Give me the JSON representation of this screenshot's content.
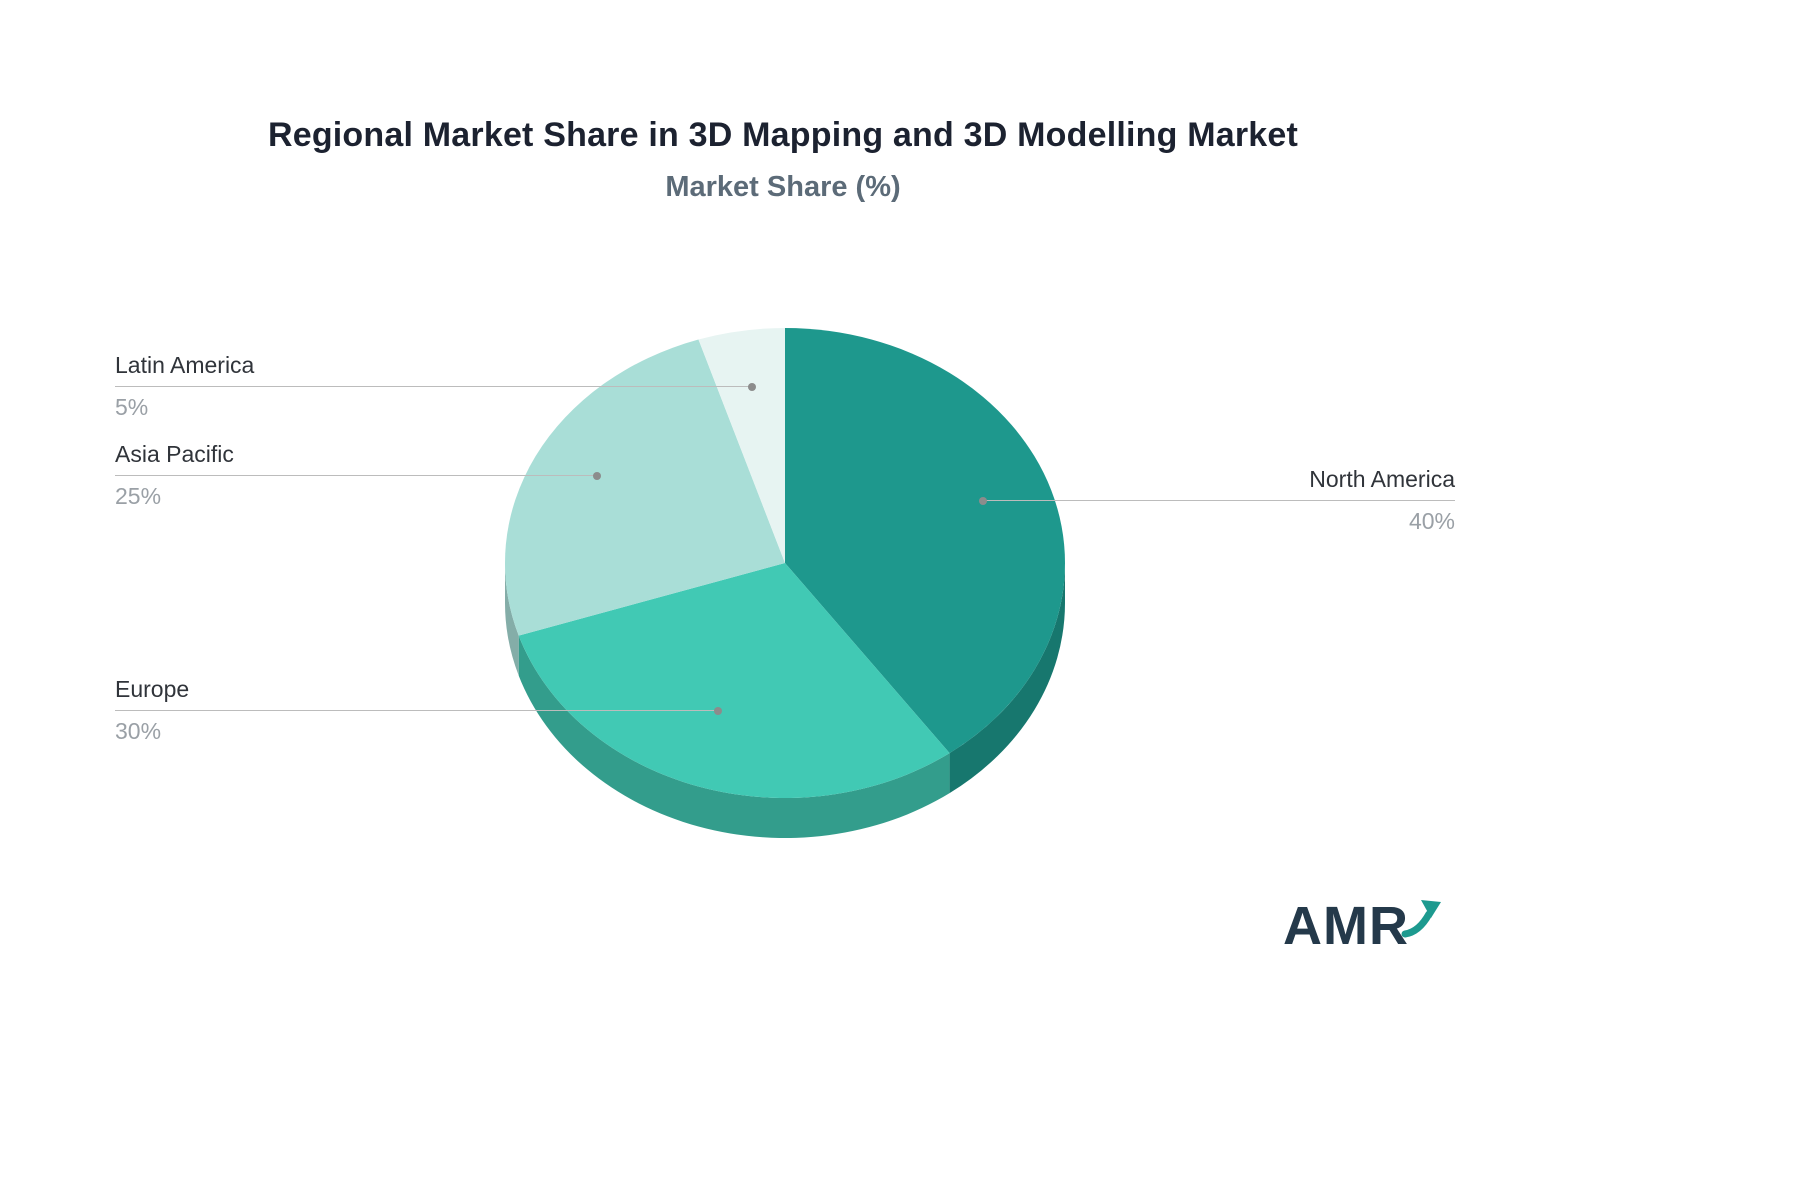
{
  "page": {
    "background": "#ffffff"
  },
  "chart_data": {
    "type": "pie",
    "title": "Regional Market Share in 3D Mapping and 3D Modelling Market",
    "subtitle": "Market Share (%)",
    "unit": "%",
    "effect": "3d",
    "direction": "clockwise",
    "start_angle_deg": 0,
    "legend_position": "callout-labels",
    "slices": [
      {
        "label": "North America",
        "value": 40,
        "display_value": "40%",
        "color": "#1e988d"
      },
      {
        "label": "Europe",
        "value": 30,
        "display_value": "30%",
        "color": "#41c9b4"
      },
      {
        "label": "Asia Pacific",
        "value": 25,
        "display_value": "25%",
        "color": "#a9ded7"
      },
      {
        "label": "Latin America",
        "value": 5,
        "display_value": "5%",
        "color": "#e7f4f2"
      }
    ]
  },
  "branding": {
    "logo_text": "AMR",
    "logo_color": "#24394a",
    "logo_arrow_color": "#1d9a8f"
  }
}
